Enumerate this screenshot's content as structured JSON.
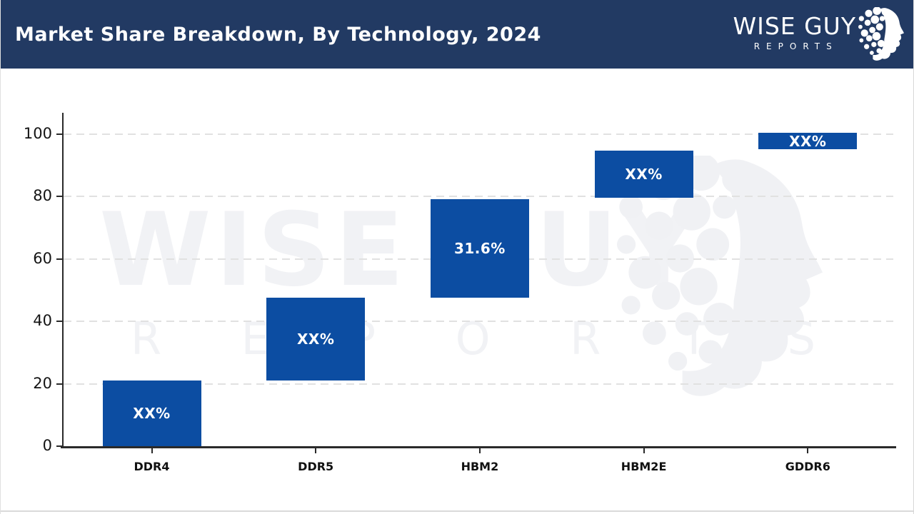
{
  "header": {
    "title": "Market Share Breakdown, By Technology, 2024",
    "bg_color": "#223A63",
    "logo": {
      "brand": "WISE GUY",
      "sub": "REPORTS"
    }
  },
  "watermark": {
    "line1": "WISE GUY",
    "line2": "R E P O R T S"
  },
  "chart_data": {
    "type": "bar",
    "subtype": "waterfall",
    "title": "Market Share Breakdown, By Technology, 2024",
    "categories": [
      "DDR4",
      "DDR5",
      "HBM2",
      "HBM2E",
      "GDDR6"
    ],
    "points": [
      {
        "category": "DDR4",
        "start": 0,
        "end": 21,
        "label": "XX%"
      },
      {
        "category": "DDR5",
        "start": 21,
        "end": 47.5,
        "label": "XX%"
      },
      {
        "category": "HBM2",
        "start": 47.5,
        "end": 79.1,
        "label": "31.6%"
      },
      {
        "category": "HBM2E",
        "start": 79.5,
        "end": 94.7,
        "label": "XX%"
      },
      {
        "category": "GDDR6",
        "start": 95,
        "end": 100.3,
        "label": "XX%"
      }
    ],
    "yticks": [
      0,
      20,
      40,
      60,
      80,
      100
    ],
    "ylim": [
      0,
      106
    ],
    "xlabel": "",
    "ylabel": "",
    "grid": "dashed-horizontal",
    "legend": "none",
    "bar_color": "#0C4DA2",
    "bar_label_color": "#ffffff"
  }
}
